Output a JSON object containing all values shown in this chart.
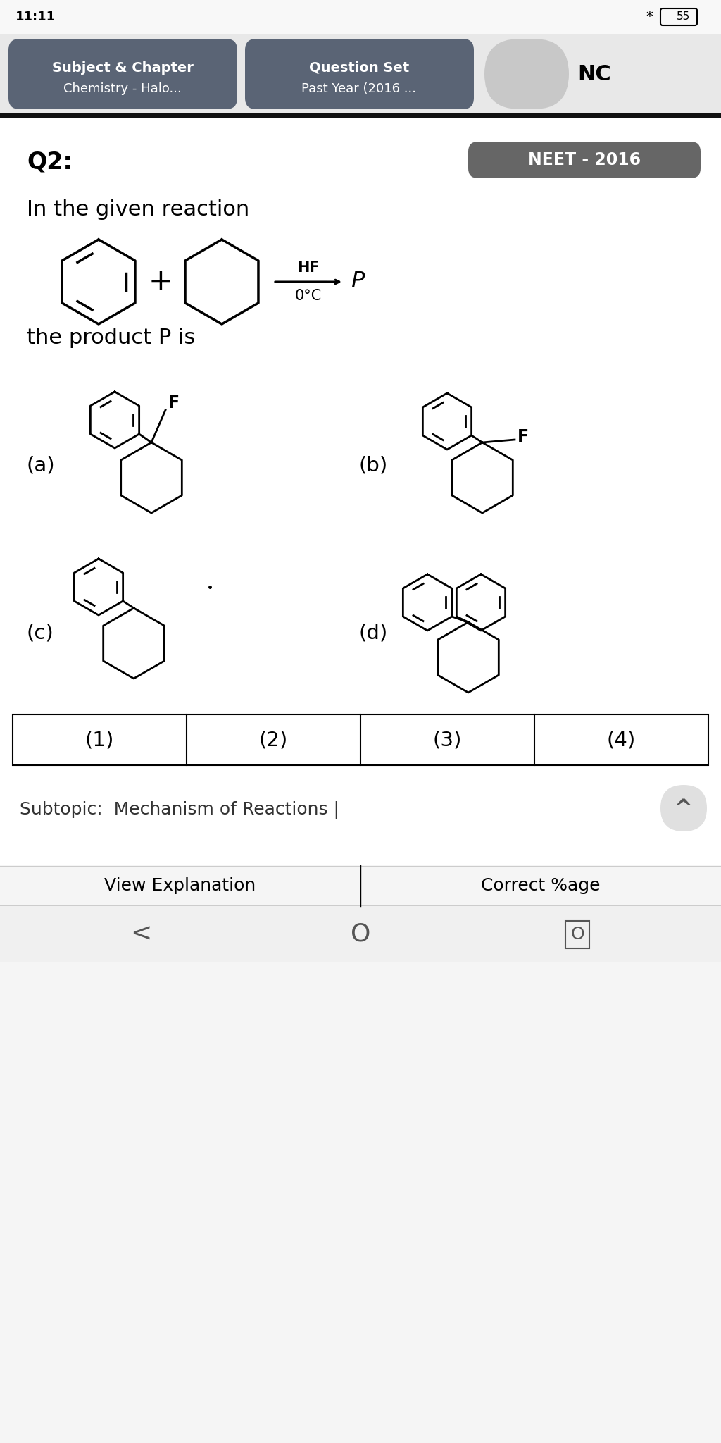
{
  "bg_color": "#f0f0f0",
  "content_bg": "#ffffff",
  "header_bg": "#5a6475",
  "subject_line1": "Subject & Chapter",
  "subject_line2": "Chemistry - Halo...",
  "qset_line1": "Question Set",
  "qset_line2": "Past Year (2016 ...",
  "nc_text": "NC",
  "neet_badge_text": "NEET - 2016",
  "q2_text": "Q2:",
  "question_text": "In the given reaction",
  "product_text": "the product P is",
  "hf_text": "HF",
  "temp_text": "0°C",
  "P_text": "P",
  "option_a": "(a)",
  "option_b": "(b)",
  "option_c": "(c)",
  "option_d": "(d)",
  "subtopic_text": "Subtopic:  Mechanism of Reactions |",
  "view_exp_text": "View Explanation",
  "correct_pct_text": "Correct %age",
  "footer_options": [
    "(1)",
    "(2)",
    "(3)",
    "(4)"
  ],
  "status_time": "11:11",
  "battery_text": "55"
}
